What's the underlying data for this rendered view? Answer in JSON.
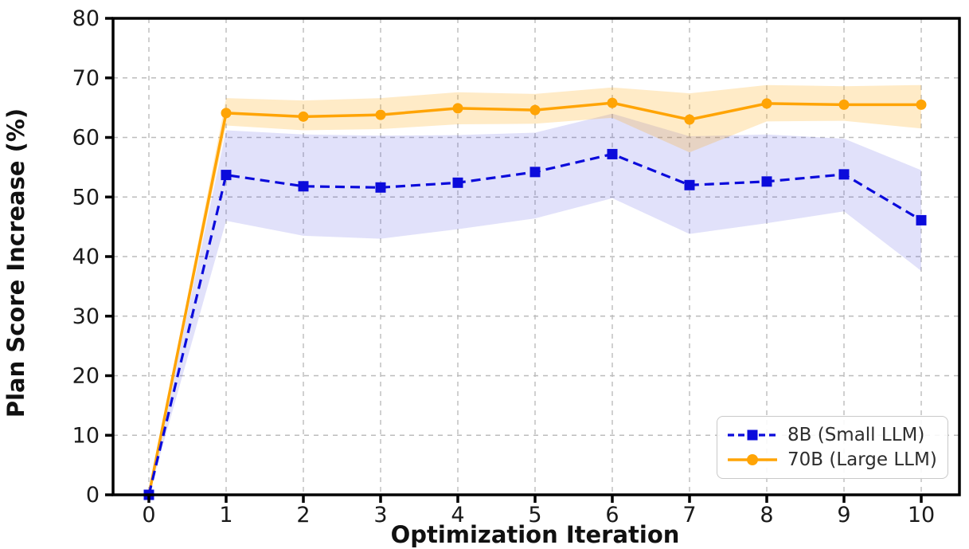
{
  "chart_data": {
    "type": "line",
    "title": "",
    "xlabel": "Optimization Iteration",
    "ylabel": "Plan Score Increase (%)",
    "x": [
      0,
      1,
      2,
      3,
      4,
      5,
      6,
      7,
      8,
      9,
      10
    ],
    "xticks": [
      "0",
      "1",
      "2",
      "3",
      "4",
      "5",
      "6",
      "7",
      "8",
      "9",
      "10"
    ],
    "yticks": [
      "0",
      "10",
      "20",
      "30",
      "40",
      "50",
      "60",
      "70",
      "80"
    ],
    "ylim": [
      0,
      80
    ],
    "xlim": [
      -0.46,
      10.5
    ],
    "grid": "dashed gridlines on both axes at every tick",
    "legend_position": "lower-right",
    "axis_color": "#000000",
    "grid_color": "#bcbcbc",
    "tick_label_color": "#1a1a1a",
    "series": [
      {
        "name": "8B (Small LLM)",
        "color": "#0b0bdb",
        "line_style": "dashed",
        "marker": "square",
        "values": [
          0,
          53.7,
          51.8,
          51.6,
          52.4,
          54.2,
          57.2,
          52.0,
          52.6,
          53.8,
          46.1
        ],
        "band_upper": [
          0,
          61.2,
          60.5,
          60.3,
          60.4,
          60.8,
          64.0,
          60.2,
          60.5,
          59.8,
          54.5
        ],
        "band_lower": [
          0,
          46.0,
          43.5,
          43.0,
          44.6,
          46.4,
          49.8,
          43.8,
          45.6,
          47.6,
          37.6
        ],
        "band_color": "rgba(70,70,225,0.16)"
      },
      {
        "name": "70B (Large LLM)",
        "color": "#ffa405",
        "line_style": "solid",
        "marker": "circle",
        "values": [
          0,
          64.1,
          63.5,
          63.8,
          64.9,
          64.6,
          65.8,
          63.0,
          65.7,
          65.5,
          65.5
        ],
        "band_upper": [
          0,
          66.6,
          66.2,
          66.6,
          67.6,
          67.3,
          68.4,
          67.4,
          68.8,
          68.6,
          68.8
        ],
        "band_lower": [
          0,
          62.0,
          61.2,
          61.4,
          62.2,
          62.3,
          63.3,
          57.5,
          62.7,
          62.8,
          61.5
        ],
        "band_color": "rgba(255,165,0,0.22)"
      }
    ]
  }
}
